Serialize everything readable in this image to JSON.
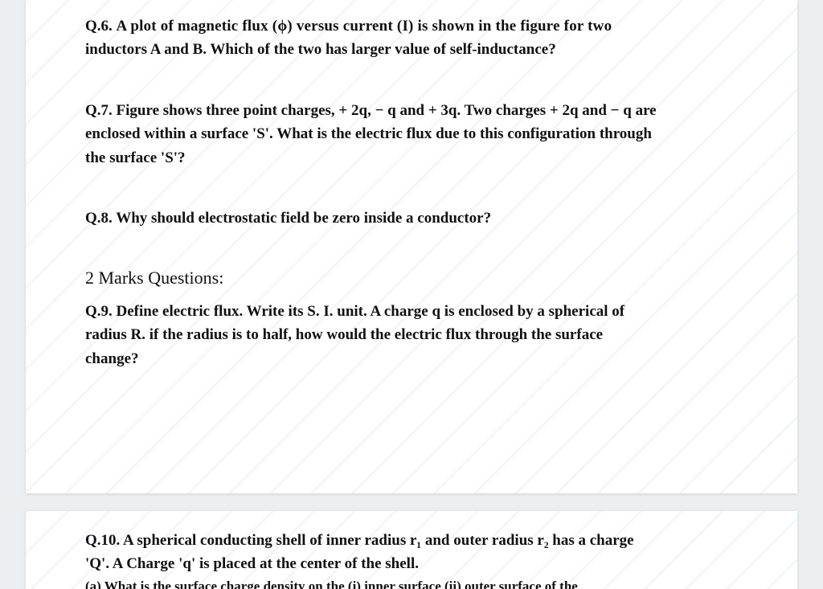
{
  "page1": {
    "q6": {
      "label": "Q.6.",
      "text1": "A plot of magnetic flux (ϕ) versus current (I) is shown in the figure for two",
      "text2": "inductors A and B. Which of the two has larger value of self-inductance?"
    },
    "q7": {
      "label": "Q.7.",
      "text1": "Figure shows three point charges, + 2q, − q and + 3q. Two charges + 2q and − q are",
      "text2": "enclosed within a surface 'S'. What is the electric flux due to this configuration through",
      "text3": "the surface 'S'?"
    },
    "q8": {
      "label": "Q.8.",
      "text1": "Why should electrostatic field be zero inside a conductor?"
    },
    "section": "2 Marks Questions:",
    "q9": {
      "label": "Q.9.",
      "text1": "Define electric flux. Write its S. I. unit. A charge q is enclosed by a spherical of",
      "text2": "radius R. if the radius is to half, how would the electric flux through the surface",
      "text3": "change?"
    }
  },
  "page2": {
    "q10": {
      "label": "Q.10.",
      "text1": "A spherical conducting shell of inner radius r₁ and outer radius r₂ has a charge",
      "text2": "'Q'. A Charge 'q' is placed at the center of the shell."
    },
    "sub_a": "(a) What is the surface charge density on the (i) inner surface  (ii) outer surface of the"
  }
}
